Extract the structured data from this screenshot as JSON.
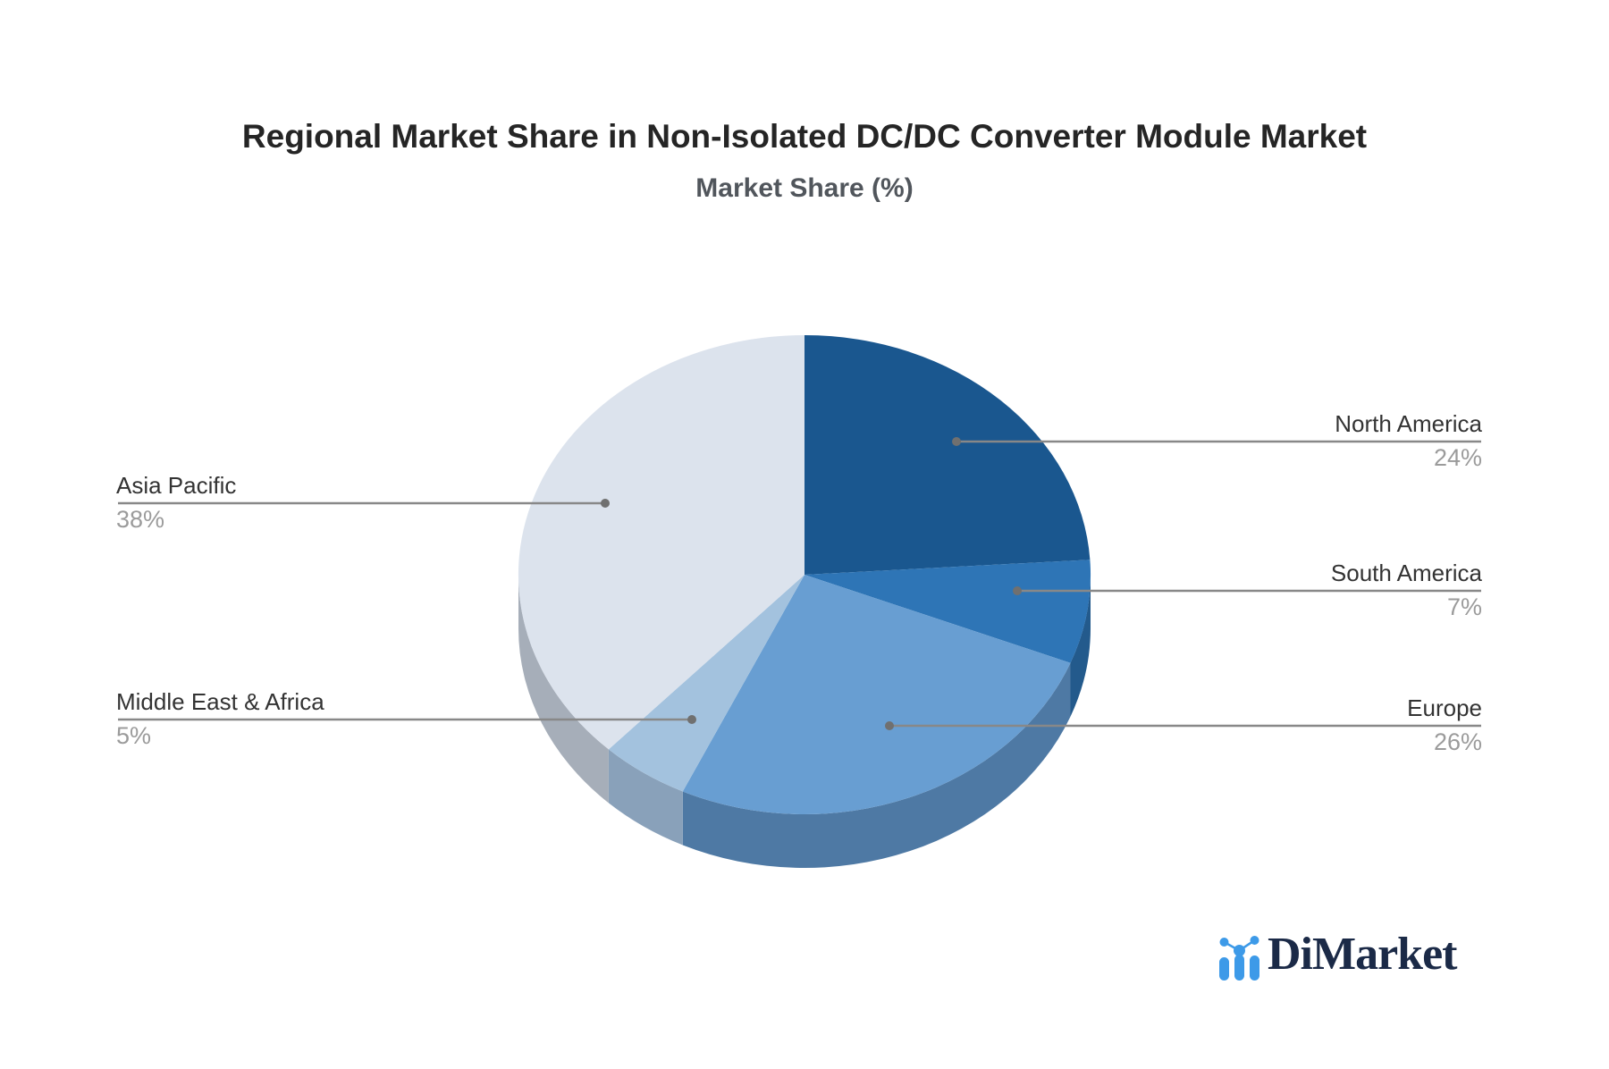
{
  "title": "Regional Market Share in Non-Isolated DC/DC Converter Module Market",
  "subtitle": "Market Share (%)",
  "logo": {
    "text": "DiMarket"
  },
  "colors": {
    "background": "#ffffff",
    "title": "#252525",
    "subtitle": "#51565c",
    "label_name": "#333333",
    "label_pct": "#9b9b9b",
    "connector_line": "#888888",
    "connector_dot": "#707070",
    "logo_icon_blue": "#3d9ae8",
    "logo_text_navy": "#1b2a47"
  },
  "slices": [
    {
      "label": "North America",
      "value": 24,
      "pct": "24%",
      "color": "#1a578f",
      "shade": "#16497c"
    },
    {
      "label": "South America",
      "value": 7,
      "pct": "7%",
      "color": "#2e75b6",
      "shade": "#235a8c"
    },
    {
      "label": "Europe",
      "value": 26,
      "pct": "26%",
      "color": "#689ed2",
      "shade": "#4e79a4"
    },
    {
      "label": "Middle East & Africa",
      "value": 5,
      "pct": "5%",
      "color": "#a3c2de",
      "shade": "#89a1ba"
    },
    {
      "label": "Asia Pacific",
      "value": 38,
      "pct": "38%",
      "color": "#dce3ed",
      "shade": "#a6aeb9"
    }
  ],
  "chart_data": {
    "type": "pie",
    "title": "Regional Market Share in Non-Isolated DC/DC Converter Module Market",
    "subtitle": "Market Share (%)",
    "unit": "%",
    "categories": [
      "North America",
      "South America",
      "Europe",
      "Middle East & Africa",
      "Asia Pacific"
    ],
    "values": [
      24,
      7,
      26,
      5,
      38
    ],
    "colors": [
      "#1a578f",
      "#2e75b6",
      "#689ed2",
      "#a3c2de",
      "#dce3ed"
    ],
    "style": "3d-pie",
    "start_angle_deg": 0,
    "direction": "clockwise",
    "legend_position": "none",
    "labels": "leader-line callouts with percentage"
  }
}
